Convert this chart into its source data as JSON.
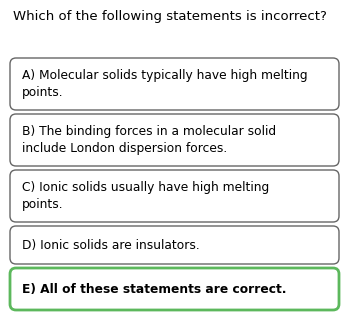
{
  "title": "Which of the following statements is incorrect?",
  "title_fontsize": 9.5,
  "background_color": "#ffffff",
  "options": [
    {
      "label": "A) Molecular solids typically have high melting\npoints.",
      "border_color": "#666666",
      "border_width": 1.0,
      "text_color": "#000000",
      "bold": false,
      "fontsize": 8.8
    },
    {
      "label": "B) The binding forces in a molecular solid\ninclude London dispersion forces.",
      "border_color": "#666666",
      "border_width": 1.0,
      "text_color": "#000000",
      "bold": false,
      "fontsize": 8.8
    },
    {
      "label": "C) Ionic solids usually have high melting\npoints.",
      "border_color": "#666666",
      "border_width": 1.0,
      "text_color": "#000000",
      "bold": false,
      "fontsize": 8.8
    },
    {
      "label": "D) Ionic solids are insulators.",
      "border_color": "#666666",
      "border_width": 1.0,
      "text_color": "#000000",
      "bold": false,
      "fontsize": 8.8
    },
    {
      "label": "E) All of these statements are correct.",
      "border_color": "#5cb85c",
      "border_width": 2.0,
      "text_color": "#000000",
      "bold": true,
      "fontsize": 8.8
    }
  ]
}
